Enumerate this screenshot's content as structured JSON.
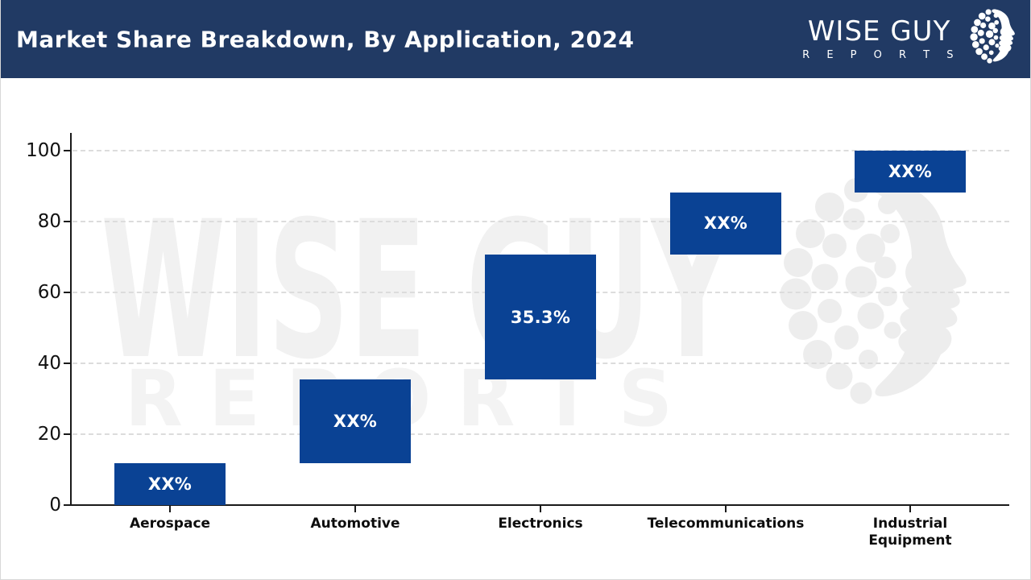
{
  "header": {
    "title": "Market Share Breakdown, By Application, 2024",
    "brand_line1": "WISE GUY",
    "brand_line2": "R E P O R T S",
    "bg_color": "#213a64",
    "text_color": "#ffffff"
  },
  "watermark": {
    "line1": "WISE GUY",
    "line2": "R E P O R T S"
  },
  "chart_data": {
    "type": "bar",
    "subtype": "waterfall",
    "title": "Market Share Breakdown, By Application, 2024",
    "xlabel": "",
    "ylabel": "",
    "ylim": [
      0,
      100
    ],
    "yticks": [
      0,
      20,
      40,
      60,
      80,
      100
    ],
    "grid": "horizontal dashed",
    "legend": "none",
    "bar_color": "#0a4294",
    "bar_label_color": "#ffffff",
    "categories": [
      "Aerospace",
      "Automotive",
      "Electronics",
      "Telecommunications",
      "Industrial Equipment"
    ],
    "segments": [
      {
        "category": "Aerospace",
        "start": 0,
        "end": 11.8,
        "label": "XX%"
      },
      {
        "category": "Automotive",
        "start": 11.8,
        "end": 35.4,
        "label": "XX%"
      },
      {
        "category": "Electronics",
        "start": 35.4,
        "end": 70.7,
        "label": "35.3%"
      },
      {
        "category": "Telecommunications",
        "start": 70.7,
        "end": 88.2,
        "label": "XX%"
      },
      {
        "category": "Industrial Equipment",
        "start": 88.2,
        "end": 100,
        "label": "XX%"
      }
    ]
  }
}
